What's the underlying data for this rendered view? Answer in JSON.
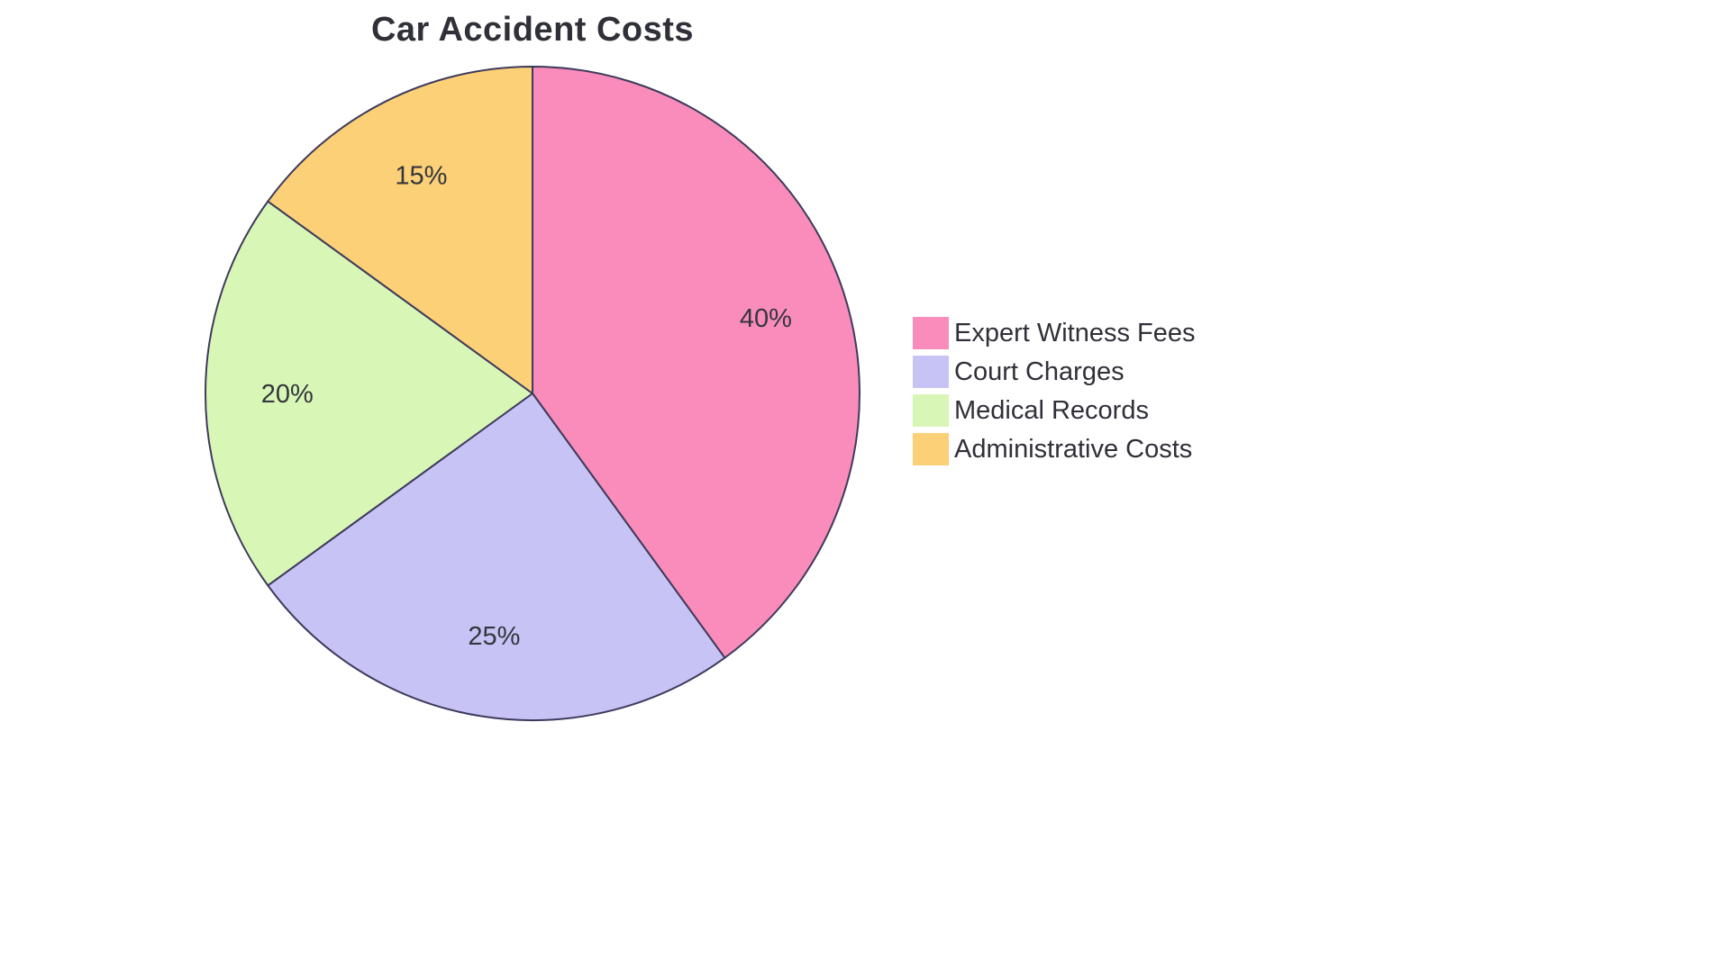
{
  "chart_data": {
    "type": "pie",
    "title": "Car Accident Costs",
    "labels": [
      "Expert Witness Fees",
      "Court Charges",
      "Medical Records",
      "Administrative Costs"
    ],
    "values": [
      40,
      25,
      20,
      15
    ],
    "unit": "%",
    "slice_labels": [
      "40%",
      "25%",
      "20%",
      "15%"
    ],
    "colors": [
      "#F98CBA",
      "#C7C3F5",
      "#D8F7B6",
      "#FBD077"
    ],
    "stroke_color": "#3E3A5C",
    "text_color": "#35363d",
    "direction": "clockwise",
    "start_angle_deg": 0,
    "legend_position": "right",
    "legend_items": [
      {
        "label": "Expert Witness Fees",
        "color": "#F98CBA"
      },
      {
        "label": "Court Charges",
        "color": "#C7C3F5"
      },
      {
        "label": "Medical Records",
        "color": "#D8F7B6"
      },
      {
        "label": "Administrative Costs",
        "color": "#FBD077"
      }
    ]
  }
}
